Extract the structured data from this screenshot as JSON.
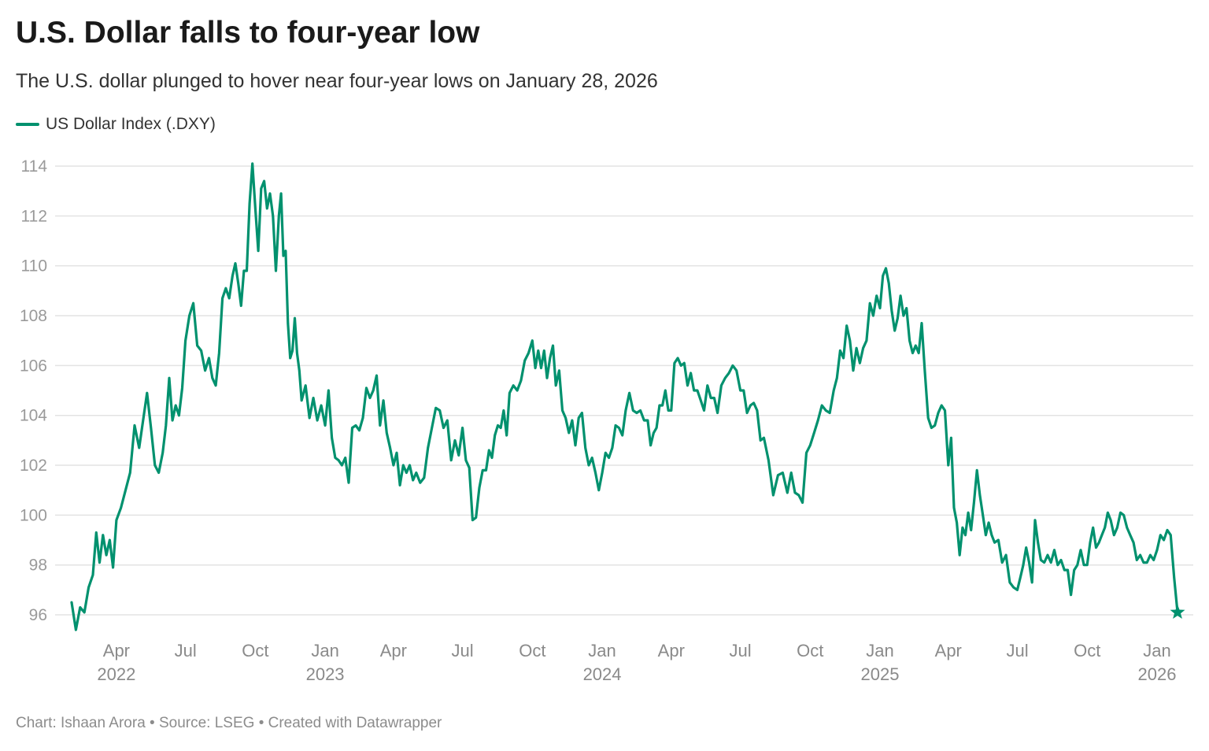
{
  "title": "U.S. Dollar falls to four-year low",
  "subtitle": "The U.S. dollar plunged to hover near four-year lows on January 28, 2026",
  "footer": "Chart: Ishaan Arora • Source: LSEG • Created with Datawrapper",
  "chart_data": {
    "type": "line",
    "legend": {
      "label": "US Dollar Index (.DXY)",
      "placement": "top-left"
    },
    "line_color": "#00916e",
    "end_marker": "star",
    "last_date": "2026-01-28",
    "ylim": [
      95,
      114
    ],
    "y_ticks": [
      "96",
      "98",
      "100",
      "102",
      "104",
      "106",
      "108",
      "110",
      "112",
      "114"
    ],
    "grid": "horizontal",
    "x_ticks": [
      {
        "date": "2022-04-01",
        "label": "Apr",
        "year": "2022"
      },
      {
        "date": "2022-07-01",
        "label": "Jul",
        "year": ""
      },
      {
        "date": "2022-10-01",
        "label": "Oct",
        "year": ""
      },
      {
        "date": "2023-01-01",
        "label": "Jan",
        "year": "2023"
      },
      {
        "date": "2023-04-01",
        "label": "Apr",
        "year": ""
      },
      {
        "date": "2023-07-01",
        "label": "Jul",
        "year": ""
      },
      {
        "date": "2023-10-01",
        "label": "Oct",
        "year": ""
      },
      {
        "date": "2024-01-01",
        "label": "Jan",
        "year": "2024"
      },
      {
        "date": "2024-04-01",
        "label": "Apr",
        "year": ""
      },
      {
        "date": "2024-07-01",
        "label": "Jul",
        "year": ""
      },
      {
        "date": "2024-10-01",
        "label": "Oct",
        "year": ""
      },
      {
        "date": "2025-01-01",
        "label": "Jan",
        "year": "2025"
      },
      {
        "date": "2025-04-01",
        "label": "Apr",
        "year": ""
      },
      {
        "date": "2025-07-01",
        "label": "Jul",
        "year": ""
      },
      {
        "date": "2025-10-01",
        "label": "Oct",
        "year": ""
      },
      {
        "date": "2026-01-01",
        "label": "Jan",
        "year": "2026"
      }
    ],
    "monthly_values": [
      {
        "month": "2022-02",
        "values": [
          96.5,
          95.4,
          96.3,
          96.1,
          97.1
        ]
      },
      {
        "month": "2022-03",
        "values": [
          97.6,
          99.3,
          98.1,
          99.2,
          98.4,
          99.0,
          97.9
        ]
      },
      {
        "month": "2022-04",
        "values": [
          99.8,
          100.3,
          101.0,
          101.7,
          103.6
        ]
      },
      {
        "month": "2022-05",
        "values": [
          102.7,
          103.8,
          104.9,
          103.5,
          102.0,
          101.7
        ]
      },
      {
        "month": "2022-06",
        "values": [
          102.5,
          103.6,
          105.5,
          103.8,
          104.4,
          104.0,
          105.1
        ]
      },
      {
        "month": "2022-07",
        "values": [
          107.0,
          108.0,
          108.5,
          106.8,
          106.6,
          105.8
        ]
      },
      {
        "month": "2022-08",
        "values": [
          106.3,
          105.5,
          105.2,
          106.5,
          108.7,
          109.1,
          108.7
        ]
      },
      {
        "month": "2022-09",
        "values": [
          109.6,
          110.1,
          109.3,
          108.4,
          109.8,
          109.8,
          112.5,
          114.1
        ]
      },
      {
        "month": "2022-10",
        "values": [
          112.3,
          110.6,
          113.1,
          113.4,
          112.3,
          112.9,
          112.0,
          109.8
        ]
      },
      {
        "month": "2022-11",
        "values": [
          112.0,
          112.9,
          110.4,
          110.6,
          107.7,
          106.3,
          106.6,
          107.9,
          106.5,
          105.8
        ]
      },
      {
        "month": "2022-12",
        "values": [
          104.6,
          105.2,
          103.9,
          104.7,
          103.8,
          104.4
        ]
      },
      {
        "month": "2023-01",
        "values": [
          103.6,
          105.0,
          103.1,
          102.3,
          102.2,
          102.0,
          102.3
        ]
      },
      {
        "month": "2023-02",
        "values": [
          101.3,
          103.5,
          103.6,
          103.4,
          103.9,
          105.1
        ]
      },
      {
        "month": "2023-03",
        "values": [
          104.7,
          105.0,
          105.6,
          103.6,
          104.6,
          103.3,
          102.7
        ]
      },
      {
        "month": "2023-04",
        "values": [
          102.0,
          102.5,
          101.2,
          102.0,
          101.7,
          102.0,
          101.4
        ]
      },
      {
        "month": "2023-05",
        "values": [
          101.7,
          101.3,
          101.5,
          102.7,
          103.5,
          104.3
        ]
      },
      {
        "month": "2023-06",
        "values": [
          104.2,
          103.5,
          103.8,
          102.2,
          103.0,
          102.4
        ]
      },
      {
        "month": "2023-07",
        "values": [
          103.5,
          102.2,
          101.9,
          99.8,
          99.9,
          101.1,
          101.8
        ]
      },
      {
        "month": "2023-08",
        "values": [
          101.8,
          102.6,
          102.3,
          103.2,
          103.6,
          103.5,
          104.2,
          103.2
        ]
      },
      {
        "month": "2023-09",
        "values": [
          104.9,
          105.2,
          105.0,
          105.4,
          106.2,
          106.5
        ]
      },
      {
        "month": "2023-10",
        "values": [
          107.0,
          105.9,
          106.6,
          105.9,
          106.6,
          105.5,
          106.3,
          106.8
        ]
      },
      {
        "month": "2023-11",
        "values": [
          105.2,
          105.8,
          104.2,
          103.9,
          103.3,
          103.8,
          102.8
        ]
      },
      {
        "month": "2023-12",
        "values": [
          103.9,
          104.1,
          102.7,
          102.0,
          102.3,
          101.7,
          101.0
        ]
      },
      {
        "month": "2024-01",
        "values": [
          101.7,
          102.5,
          102.3,
          102.7,
          103.6,
          103.5,
          103.2
        ]
      },
      {
        "month": "2024-02",
        "values": [
          104.2,
          104.9,
          104.2,
          104.1,
          104.2,
          103.8
        ]
      },
      {
        "month": "2024-03",
        "values": [
          103.8,
          102.8,
          103.3,
          103.5,
          104.4,
          104.4,
          105.0,
          104.2
        ]
      },
      {
        "month": "2024-04",
        "values": [
          104.2,
          106.1,
          106.3,
          106.0,
          106.1,
          105.2,
          105.7
        ]
      },
      {
        "month": "2024-05",
        "values": [
          105.0,
          105.0,
          104.6,
          104.2,
          105.2,
          104.7,
          104.7
        ]
      },
      {
        "month": "2024-06",
        "values": [
          104.1,
          105.2,
          105.5,
          105.7,
          106.0,
          105.8
        ]
      },
      {
        "month": "2024-07",
        "values": [
          105.0,
          105.0,
          104.1,
          104.4,
          104.5,
          104.2,
          103.0
        ]
      },
      {
        "month": "2024-08",
        "values": [
          103.1,
          102.2,
          100.8,
          101.6,
          101.7
        ]
      },
      {
        "month": "2024-09",
        "values": [
          100.9,
          101.7,
          100.9,
          100.8,
          100.5,
          102.5
        ]
      },
      {
        "month": "2024-10",
        "values": [
          102.8,
          103.3,
          103.8,
          104.4,
          104.2,
          104.1
        ]
      },
      {
        "month": "2024-11",
        "values": [
          105.0,
          105.5,
          106.6,
          106.3,
          107.6,
          107.0,
          105.8
        ]
      },
      {
        "month": "2024-12",
        "values": [
          106.7,
          106.1,
          106.7,
          107.0,
          108.5,
          108.0,
          108.8
        ]
      },
      {
        "month": "2025-01",
        "values": [
          108.3,
          109.6,
          109.9,
          109.3,
          108.2,
          107.4,
          107.9,
          108.8
        ]
      },
      {
        "month": "2025-02",
        "values": [
          108.0,
          108.3,
          107.0,
          106.5,
          106.8,
          106.5,
          107.7
        ]
      },
      {
        "month": "2025-03",
        "values": [
          105.8,
          103.9,
          103.5,
          103.6,
          104.1,
          104.4,
          104.2
        ]
      },
      {
        "month": "2025-04",
        "values": [
          102.0,
          103.1,
          100.3,
          99.7,
          98.4,
          99.5,
          99.2,
          100.1
        ]
      },
      {
        "month": "2025-05",
        "values": [
          99.4,
          100.5,
          101.8,
          100.8,
          100.0,
          99.2,
          99.7,
          99.2
        ]
      },
      {
        "month": "2025-06",
        "values": [
          98.9,
          99.0,
          98.1,
          98.4,
          97.3,
          97.1
        ]
      },
      {
        "month": "2025-07",
        "values": [
          97.0,
          97.5,
          98.0,
          98.7,
          98.1,
          97.3,
          99.8,
          98.9
        ]
      },
      {
        "month": "2025-08",
        "values": [
          98.2,
          98.1,
          98.4,
          98.1,
          98.6,
          98.0,
          98.2
        ]
      },
      {
        "month": "2025-09",
        "values": [
          97.8,
          97.8,
          96.8,
          97.8,
          98.0,
          98.6,
          98.0
        ]
      },
      {
        "month": "2025-10",
        "values": [
          98.0,
          98.9,
          99.5,
          98.7,
          98.9,
          99.2,
          99.5,
          100.1
        ]
      },
      {
        "month": "2025-11",
        "values": [
          99.8,
          99.2,
          99.5,
          100.1,
          100.0,
          99.5,
          99.2
        ]
      },
      {
        "month": "2025-12",
        "values": [
          98.9,
          98.2,
          98.4,
          98.1,
          98.1,
          98.4,
          98.2
        ]
      },
      {
        "month": "2026-01",
        "values": [
          98.6,
          99.2,
          99.0,
          99.4,
          99.2,
          97.5,
          96.1
        ]
      }
    ]
  }
}
